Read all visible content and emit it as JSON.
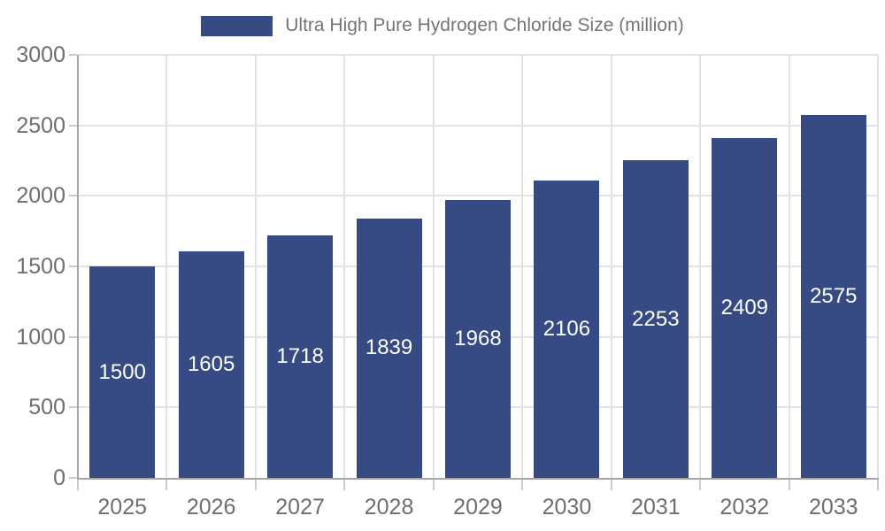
{
  "legend": {
    "label": "Ultra High Pure Hydrogen Chloride Size (million)"
  },
  "chart_data": {
    "type": "bar",
    "title": "",
    "categories": [
      "2025",
      "2026",
      "2027",
      "2028",
      "2029",
      "2030",
      "2031",
      "2032",
      "2033"
    ],
    "series": [
      {
        "name": "Ultra High Pure Hydrogen Chloride Size (million)",
        "values": [
          1500,
          1605,
          1718,
          1839,
          1968,
          2106,
          2253,
          2409,
          2575
        ]
      }
    ],
    "value_labels": "inside-center, white",
    "xlabel": "",
    "ylabel": "",
    "ylim": [
      0,
      3000
    ],
    "ytick_step": 500,
    "grid": "horizontal and vertical, light gray",
    "legend_position": "top-center",
    "colors": {
      "bar": "#364a83",
      "grid": "#e3e3e3",
      "axis": "#a6a6a6",
      "tick": "#cccccc",
      "axis_text": "#6e6e6e",
      "legend_text": "#757575",
      "bar_label": "#ffffff",
      "background": "#ffffff"
    }
  }
}
